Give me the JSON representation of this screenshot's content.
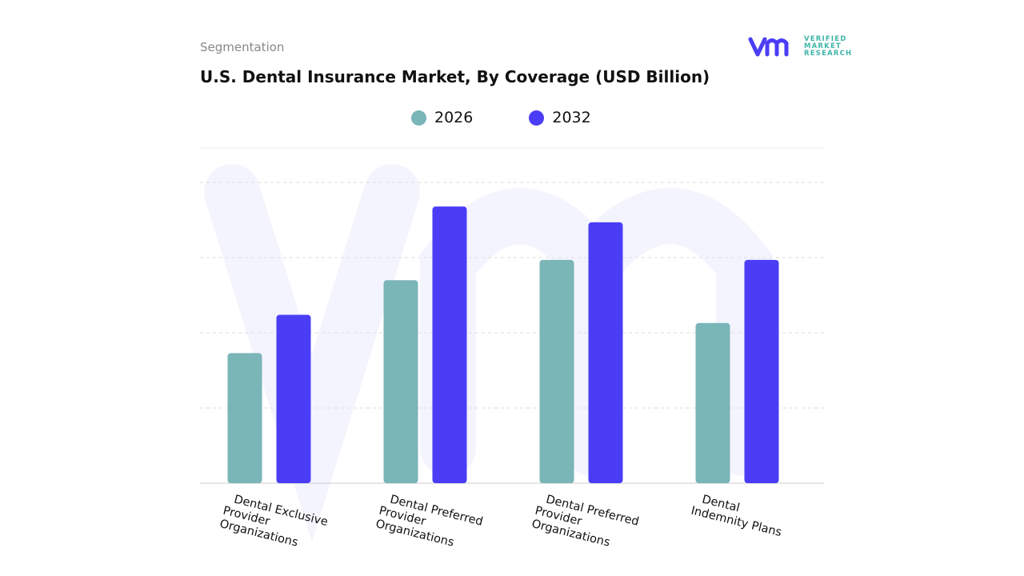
{
  "header": {
    "segment_label": "Segmentation",
    "title": "U.S. Dental Insurance Market, By Coverage (USD Billion)"
  },
  "logo": {
    "text": [
      "VERIFIED",
      "MARKET",
      "RESEARCH"
    ],
    "mark": "vmr"
  },
  "chart_data": {
    "type": "bar",
    "title": "U.S. Dental Insurance Market, By Coverage (USD Billion)",
    "categories": [
      "Dental Exclusive Provider Organizations",
      "Dental Preferred Provider Organizations",
      "Dental Preferred Provider Organizations",
      "Dental Indemnity Plans"
    ],
    "category_lines": [
      [
        "Dental Exclusive",
        "Provider",
        "Organizations"
      ],
      [
        "Dental Preferred",
        "Provider",
        "Organizations"
      ],
      [
        "Dental Preferred",
        "Provider",
        "Organizations"
      ],
      [
        "Dental",
        "Indemnity Plans"
      ]
    ],
    "series": [
      {
        "name": "2026",
        "color": "#7ab5b8",
        "values": [
          1.73,
          2.7,
          2.97,
          2.13
        ]
      },
      {
        "name": "2032",
        "color": "#4b3df5",
        "values": [
          2.24,
          3.68,
          3.47,
          2.97
        ]
      }
    ],
    "ylim": [
      0,
      4
    ],
    "y_axis_labels_shown": false,
    "grid": true,
    "legend": "top-center",
    "xlabel": "",
    "ylabel": ""
  }
}
